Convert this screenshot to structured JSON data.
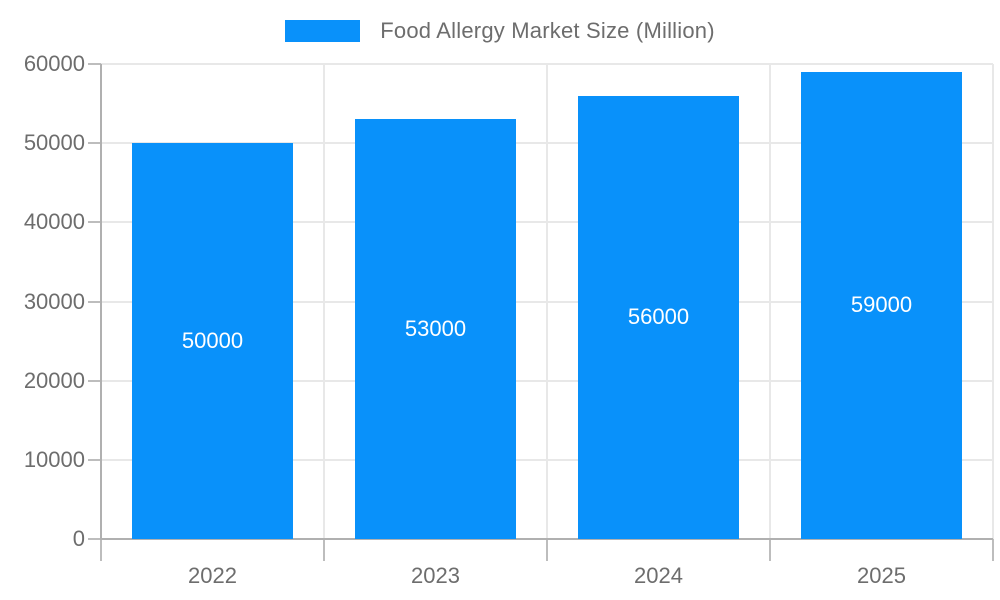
{
  "chart_data": {
    "type": "bar",
    "title": "",
    "categories": [
      "2022",
      "2023",
      "2024",
      "2025"
    ],
    "series": [
      {
        "name": "Food Allergy Market Size (Million)",
        "values": [
          50000,
          53000,
          56000,
          59000
        ]
      }
    ],
    "value_labels": [
      "50000",
      "53000",
      "56000",
      "59000"
    ],
    "xlabel": "",
    "ylabel": "",
    "ylim": [
      0,
      60000
    ],
    "ytick_step": 10000,
    "ytick_labels": [
      "0",
      "10000",
      "20000",
      "30000",
      "40000",
      "50000",
      "60000"
    ],
    "grid": true,
    "legend_position": "top-center",
    "colors": {
      "bar": "#0991fa",
      "value_label": "#ffffff",
      "axis_line": "#b0b0b0",
      "gridline": "#e8e8e8",
      "axis_text": "#6d6d6d"
    }
  }
}
